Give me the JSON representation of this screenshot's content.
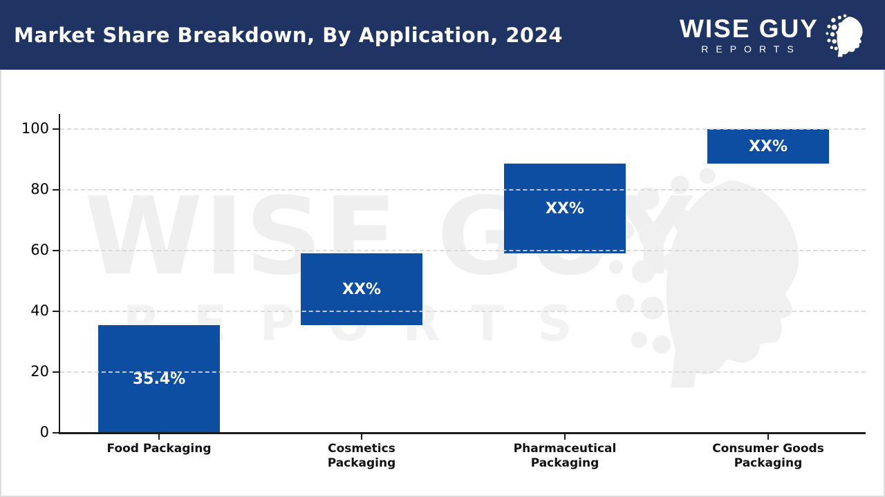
{
  "header": {
    "title": "Market Share Breakdown, By Application, 2024",
    "logo": {
      "line1": "WISE GUY",
      "line2": "REPORTS"
    }
  },
  "watermark": {
    "line1": "WISE GUY",
    "line2": "REPORTS"
  },
  "chart_data": {
    "type": "bar",
    "subtype": "waterfall",
    "title": "Market Share Breakdown, By Application, 2024",
    "categories": [
      [
        "Food Packaging"
      ],
      [
        "Cosmetics",
        "Packaging"
      ],
      [
        "Pharmaceutical",
        "Packaging"
      ],
      [
        "Consumer Goods",
        "Packaging"
      ]
    ],
    "segments": [
      {
        "start": 0,
        "end": 35.4,
        "label": "35.4%"
      },
      {
        "start": 35.4,
        "end": 59,
        "label": "XX%"
      },
      {
        "start": 59,
        "end": 88.6,
        "label": "XX%"
      },
      {
        "start": 88.6,
        "end": 100,
        "label": "XX%"
      }
    ],
    "yticks": [
      0,
      20,
      40,
      60,
      80,
      100
    ],
    "ylim": [
      0,
      105
    ],
    "xlabel": "",
    "ylabel": "",
    "grid": "dashed-horizontal",
    "legend": "none",
    "colors": {
      "bar": "#0d4da2",
      "header_bg": "#1f3463",
      "grid": "#d7d7d7",
      "axis": "#1a1a1a",
      "bar_label": "#ffffff"
    }
  }
}
